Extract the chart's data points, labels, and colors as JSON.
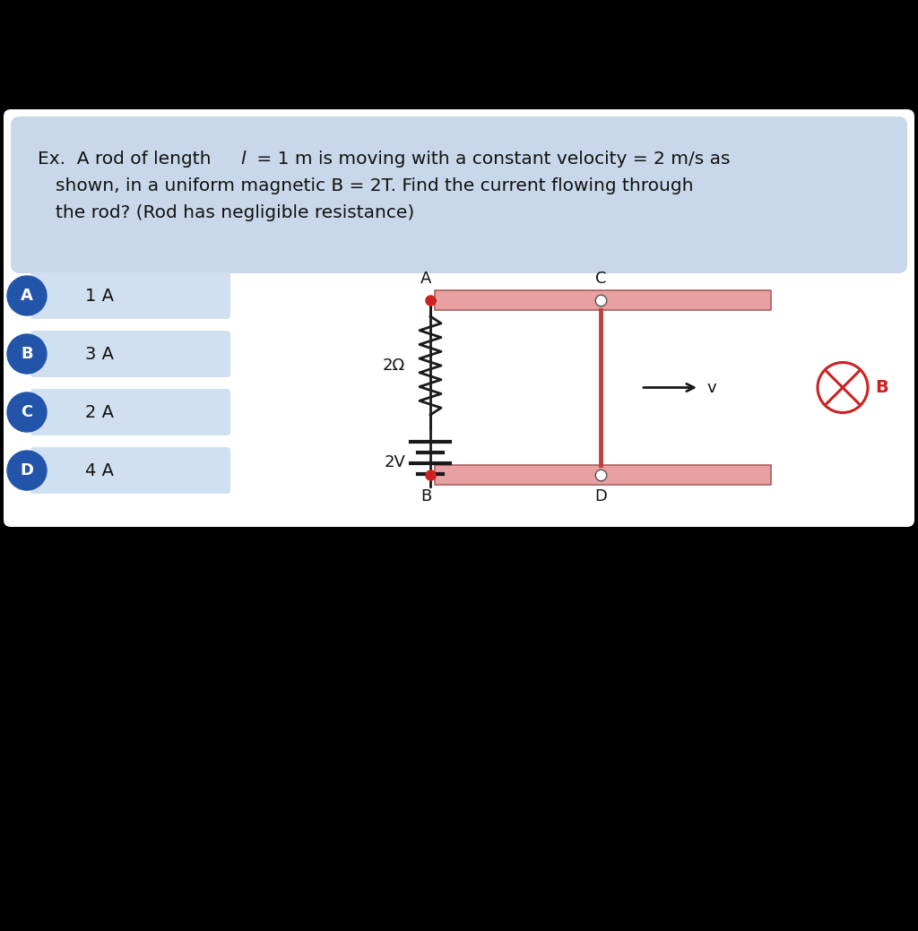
{
  "bg_color": "#000000",
  "white_bg": "#ffffff",
  "card_color": "#c8d8ea",
  "option_bg": "#d0e0f0",
  "option_label_color": "#2255aa",
  "rail_fill": "#e8a0a0",
  "rail_edge": "#aa6060",
  "rod_color": "#c04040",
  "wire_color": "#1a1a1a",
  "dot_color": "#cc2222",
  "resistor_color": "#1a1a1a",
  "battery_color": "#1a1a1a",
  "velocity_arrow_color": "#1a1a1a",
  "B_symbol_color": "#cc2222",
  "text_color": "#111111",
  "options": [
    {
      "label": "A",
      "text": "1 A"
    },
    {
      "label": "B",
      "text": "3 A"
    },
    {
      "label": "C",
      "text": "2 A"
    },
    {
      "label": "D",
      "text": "4 A"
    }
  ]
}
